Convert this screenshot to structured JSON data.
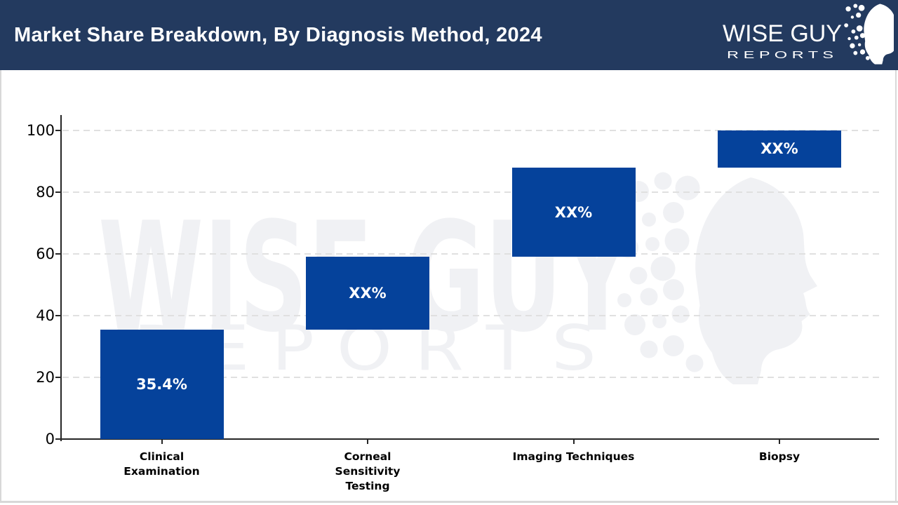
{
  "header": {
    "title": "Market Share Breakdown, By Diagnosis Method, 2024",
    "logo": {
      "line1": "WISE GUY",
      "line2": "R E P O R T S"
    }
  },
  "watermark": {
    "line1": "WISE GUY",
    "line2": "R E P O R T S"
  },
  "colors": {
    "header_bg": "#233A5F",
    "bar": "#05429B",
    "grid": "#E0E0E0",
    "axis": "#262626",
    "title_text": "#FFFFFF",
    "bar_label_text": "#FFFFFF",
    "tick_text": "#000000",
    "watermark": "#F0F1F4",
    "border": "#D8D8D8"
  },
  "chart_data": {
    "type": "bar",
    "subtype": "waterfall",
    "title": "Market Share Breakdown, By Diagnosis Method, 2024",
    "categories": [
      "Clinical Examination",
      "Corneal Sensitivity Testing",
      "Imaging Techniques",
      "Biopsy"
    ],
    "category_lines": [
      [
        "Clinical",
        "Examination"
      ],
      [
        "Corneal",
        "Sensitivity",
        "Testing"
      ],
      [
        "Imaging Techniques"
      ],
      [
        "Biopsy"
      ]
    ],
    "bars": [
      {
        "category": "Clinical Examination",
        "start": 0,
        "end": 35.4,
        "label": "35.4%"
      },
      {
        "category": "Corneal Sensitivity Testing",
        "start": 35.4,
        "end": 59,
        "label": "XX%"
      },
      {
        "category": "Imaging Techniques",
        "start": 59,
        "end": 88,
        "label": "XX%"
      },
      {
        "category": "Biopsy",
        "start": 88,
        "end": 100,
        "label": "XX%"
      }
    ],
    "yticks": [
      0,
      20,
      40,
      60,
      80,
      100
    ],
    "ylim": [
      0,
      105
    ],
    "xlabel": "",
    "ylabel": "",
    "grid": "horizontal-dashed",
    "legend": "none"
  }
}
